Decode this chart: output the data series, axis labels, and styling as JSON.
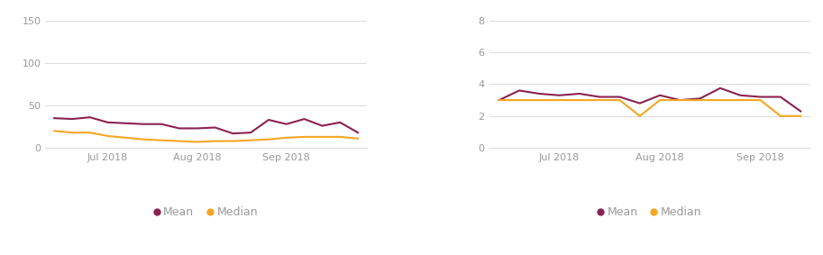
{
  "chart1": {
    "mean": [
      35,
      34,
      36,
      30,
      29,
      28,
      28,
      23,
      23,
      24,
      17,
      18,
      33,
      28,
      34,
      26,
      30,
      18
    ],
    "median": [
      20,
      18,
      18,
      14,
      12,
      10,
      9,
      8,
      7,
      8,
      8,
      9,
      10,
      12,
      13,
      13,
      13,
      11
    ],
    "ylim": [
      0,
      150
    ],
    "yticks": [
      0,
      50,
      100,
      150
    ],
    "xtick_positions": [
      3,
      8,
      13
    ],
    "xtick_labels": [
      "Jul 2018",
      "Aug 2018",
      "Sep 2018"
    ]
  },
  "chart2": {
    "mean": [
      3.0,
      3.6,
      3.4,
      3.3,
      3.4,
      3.2,
      3.2,
      2.8,
      3.3,
      3.0,
      3.1,
      3.75,
      3.3,
      3.2,
      3.2,
      2.3
    ],
    "median": [
      3.0,
      3.0,
      3.0,
      3.0,
      3.0,
      3.0,
      3.0,
      2.0,
      3.0,
      3.0,
      3.0,
      3.0,
      3.0,
      3.0,
      2.0,
      2.0
    ],
    "ylim": [
      0,
      8
    ],
    "yticks": [
      0,
      2,
      4,
      6,
      8
    ],
    "xtick_positions": [
      3,
      8,
      13
    ],
    "xtick_labels": [
      "Jul 2018",
      "Aug 2018",
      "Sep 2018"
    ]
  },
  "mean_color": "#8B2252",
  "median_color": "#F5A623",
  "bg_color": "#ffffff",
  "grid_color": "#dddddd",
  "legend_mean_label": "Mean",
  "legend_median_label": "Median",
  "line_width": 1.5,
  "label_color": "#999999",
  "tick_fontsize": 8,
  "legend_fontsize": 9
}
